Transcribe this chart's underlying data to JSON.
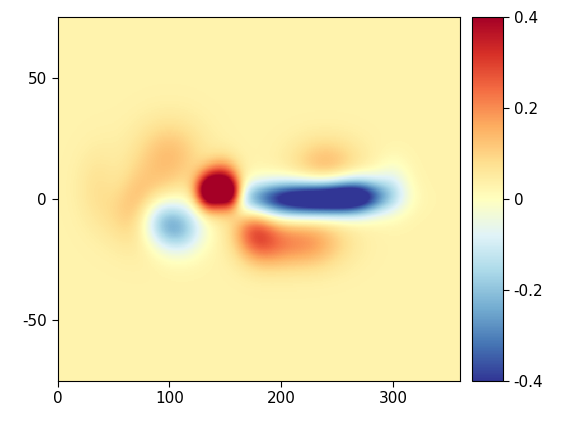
{
  "xlim": [
    0,
    360
  ],
  "ylim": [
    -75,
    75
  ],
  "xticks": [
    0,
    100,
    200,
    300
  ],
  "yticks": [
    -50,
    0,
    50
  ],
  "clim": [
    -0.4,
    0.4
  ],
  "cbar_ticks": [
    -0.4,
    -0.2,
    0,
    0.2,
    0.4
  ],
  "colormap": "RdYlBu_r",
  "background_color": "#ffffff",
  "figsize": [
    5.75,
    4.33
  ],
  "dpi": 100,
  "coastline_color": "black",
  "coastline_lw": 0.7,
  "grid_nx": 720,
  "grid_ny": 300
}
